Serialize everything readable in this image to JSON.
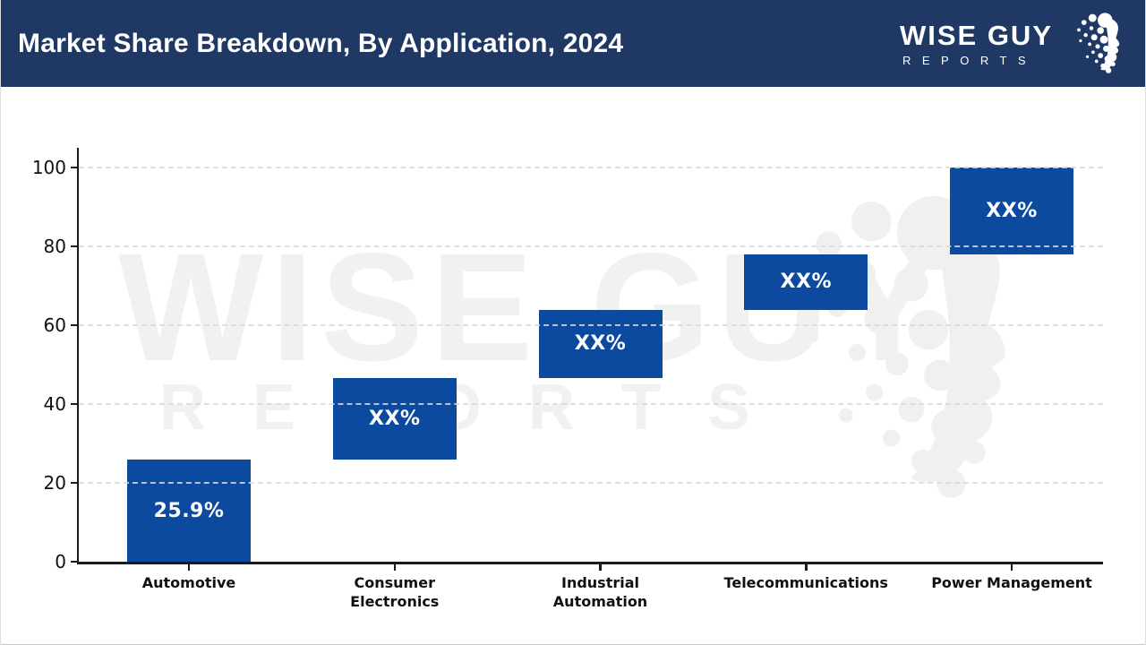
{
  "header": {
    "title": "Market Share Breakdown, By Application, 2024",
    "bg_color": "#1f3864",
    "brand": {
      "name": "WISE GUY",
      "sub": "REPORTS"
    }
  },
  "watermark": {
    "name": "WISE GUY",
    "sub": "REPORTS"
  },
  "chart_data": {
    "type": "bar",
    "subtype": "waterfall-floating-bars",
    "title": "Market Share Breakdown, By Application, 2024",
    "categories": [
      "Automotive",
      "Consumer Electronics",
      "Industrial Automation",
      "Telecommunications",
      "Power Management"
    ],
    "segments": [
      {
        "category": "Automotive",
        "start": 0,
        "end": 25.9,
        "value": 25.9,
        "label": "25.9%"
      },
      {
        "category": "Consumer Electronics",
        "start": 25.9,
        "end": 46.6,
        "value": 20.7,
        "label": "XX%"
      },
      {
        "category": "Industrial Automation",
        "start": 46.6,
        "end": 63.9,
        "value": 17.3,
        "label": "XX%"
      },
      {
        "category": "Telecommunications",
        "start": 63.9,
        "end": 78.0,
        "value": 14.1,
        "label": "XX%"
      },
      {
        "category": "Power Management",
        "start": 78.0,
        "end": 100.0,
        "value": 22.0,
        "label": "XX%"
      }
    ],
    "xlabel": "",
    "ylabel": "",
    "ylim": [
      0,
      100
    ],
    "yticks": [
      0,
      20,
      40,
      60,
      80,
      100
    ],
    "grid": "horizontal-dashed",
    "legend": null,
    "bar_color": "#0b4a9e",
    "bar_label_color": "#ffffff",
    "axis_color": "#1a1a1a",
    "gridline_color": "#d9d9d9"
  }
}
